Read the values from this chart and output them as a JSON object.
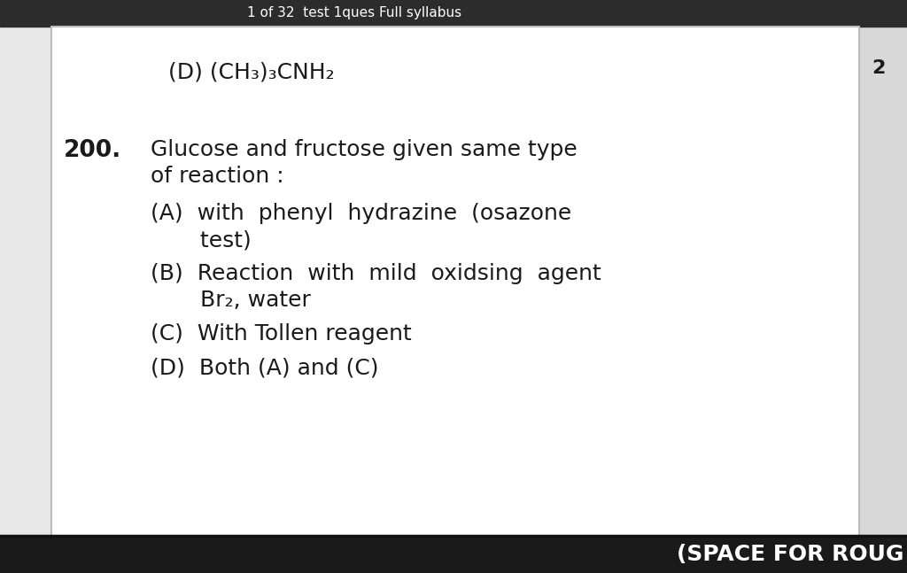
{
  "bg_color": "#f0f0f0",
  "card_bg": "#ffffff",
  "card_border": "#bbbbbb",
  "top_bar_bg": "#2c2c2c",
  "top_bar_text": "1 of 32  test 1ques Full syllabus",
  "top_bar_text_color": "#ffffff",
  "prev_option": "(D) (CH₃)₃CNH₂",
  "question_number": "200.",
  "question_line1": "Glucose and fructose given same type",
  "question_line2": "of reaction :",
  "opt_A_line1": "(A)  with  phenyl  hydrazine  (osazone",
  "opt_A_line2": "       test)",
  "opt_B_line1": "(B)  Reaction  with  mild  oxidsing  agent",
  "opt_B_line2": "       Br₂, water",
  "opt_C": "(C)  With Tollen reagent",
  "opt_D": "(D)  Both (A) and (C)",
  "footer_text": "(SPACE FOR ROUG",
  "footer_bg": "#1a1a1a",
  "footer_text_color": "#ffffff",
  "text_color": "#1a1a1a",
  "right_label": "2",
  "right_bg": "#d8d8d8",
  "sidebar_bg": "#e8e8e8"
}
